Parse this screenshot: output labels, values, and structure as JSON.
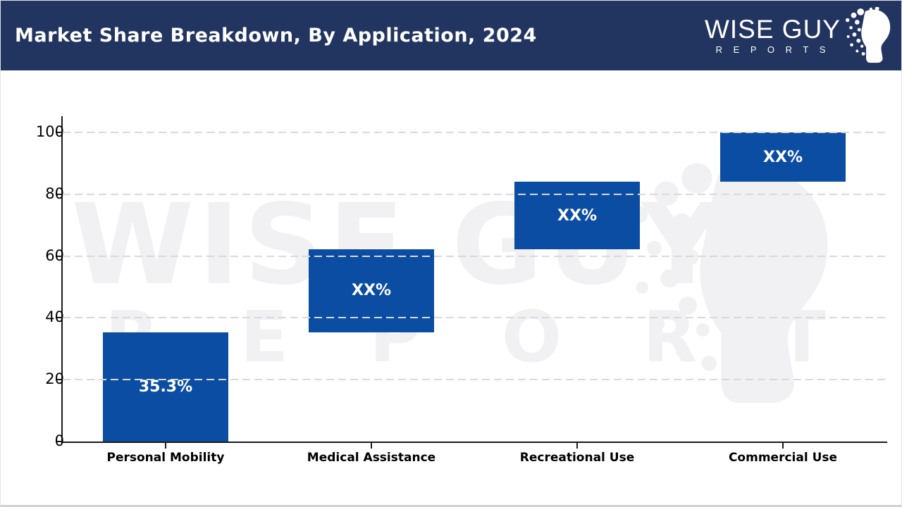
{
  "header": {
    "title": "Market Share Breakdown, By Application, 2024",
    "logo": {
      "line1": "WISE GUY",
      "line2": "R E P O R T S"
    }
  },
  "watermark": {
    "line1": "WISE GUY",
    "line2": "R E P O R T S"
  },
  "theme": {
    "header_bg": "#223560",
    "bar_color": "#0b4da2",
    "grid_color": "#d9d9d9",
    "axis_color": "#1a1a1a",
    "watermark_color": "#f1f1f3",
    "title_color": "#ffffff"
  },
  "chart_data": {
    "type": "bar",
    "subtype": "waterfall",
    "title": "Market Share Breakdown, By Application, 2024",
    "categories": [
      "Personal Mobility",
      "Medical Assistance",
      "Recreational Use",
      "Commercial Use"
    ],
    "segments": [
      {
        "category": "Personal Mobility",
        "start": 0,
        "end": 35.3,
        "label": "35.3%"
      },
      {
        "category": "Medical Assistance",
        "start": 35.3,
        "end": 62.2,
        "label": "XX%"
      },
      {
        "category": "Recreational Use",
        "start": 62.2,
        "end": 84.0,
        "label": "XX%"
      },
      {
        "category": "Commercial Use",
        "start": 84.0,
        "end": 100.0,
        "label": "XX%"
      }
    ],
    "xlabel": "",
    "ylabel": "",
    "yticks": [
      0,
      20,
      40,
      60,
      80,
      100
    ],
    "ylim": [
      0,
      105
    ],
    "grid": "horizontal-dashed-over-bars",
    "legend": "none",
    "bar_value_labels_inside": true
  }
}
